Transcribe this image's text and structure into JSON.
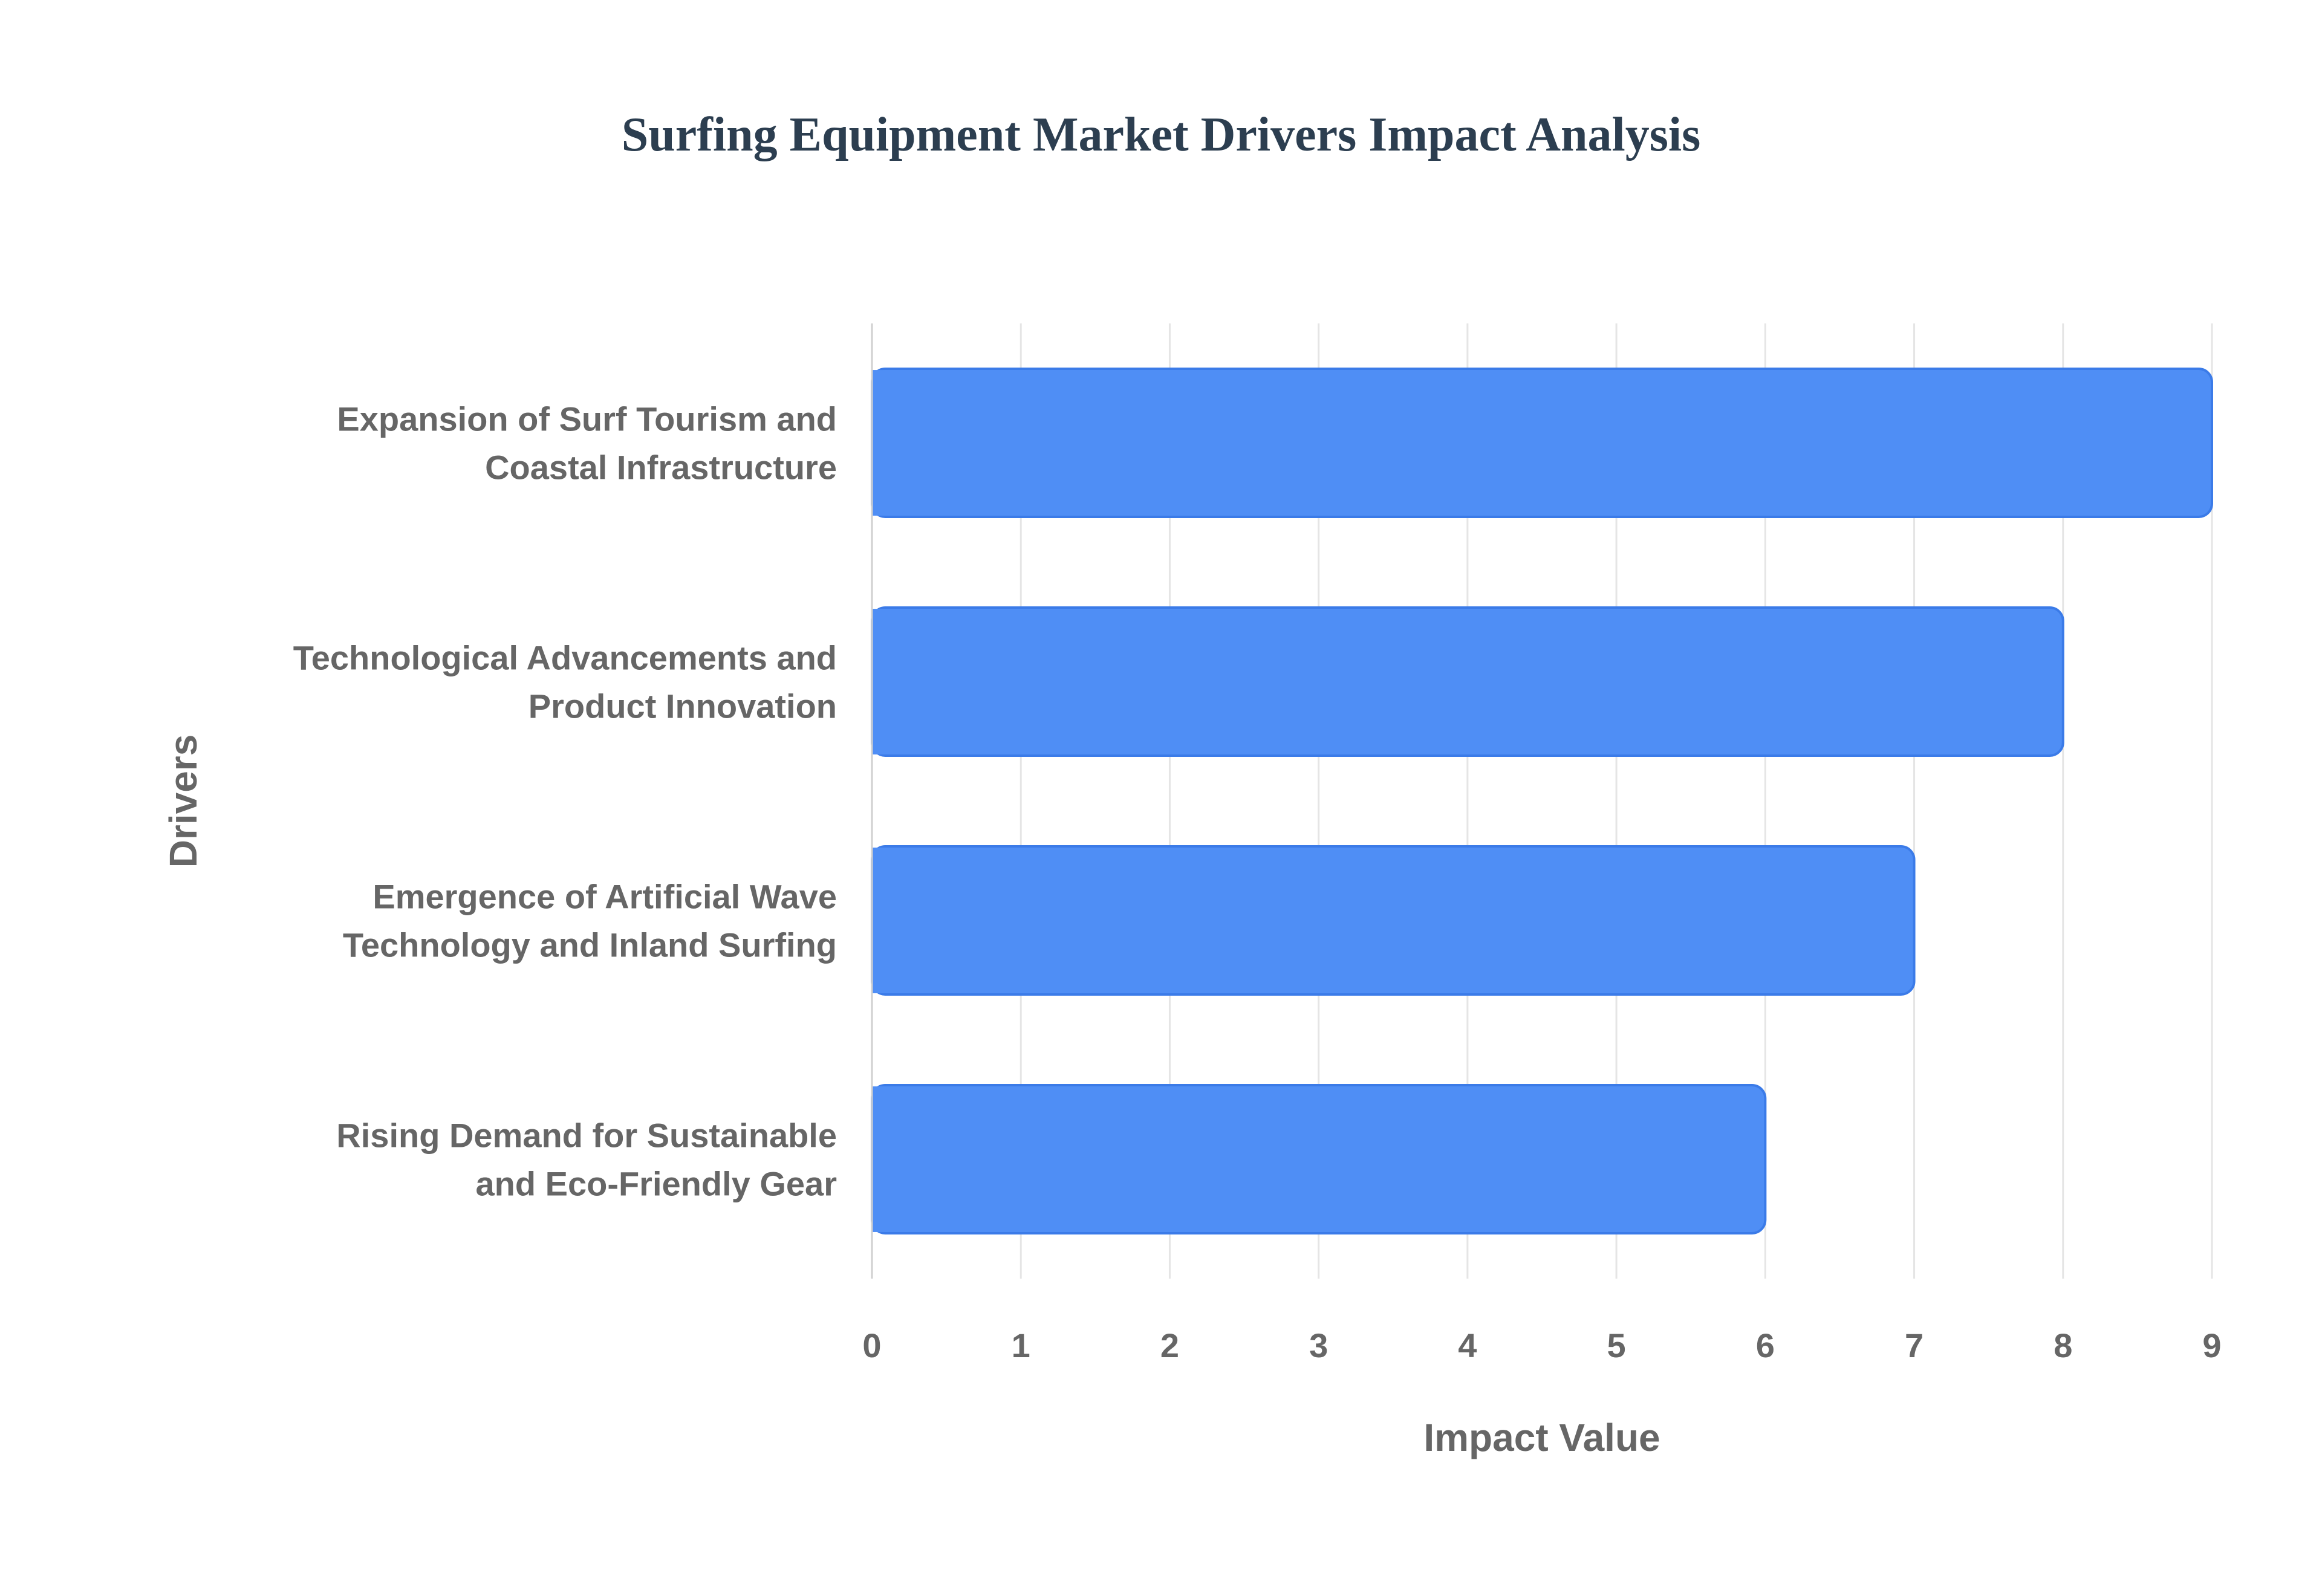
{
  "chart_data": {
    "type": "bar",
    "orientation": "horizontal",
    "title": "Surfing Equipment Market Drivers Impact Analysis",
    "xlabel": "Impact Value",
    "ylabel": "Drivers",
    "categories": [
      [
        "Expansion of Surf Tourism and",
        "Coastal Infrastructure"
      ],
      [
        "Technological Advancements and",
        "Product Innovation"
      ],
      [
        "Emergence of Artificial Wave",
        "Technology and Inland Surfing"
      ],
      [
        "Rising Demand for Sustainable",
        "and Eco-Friendly Gear"
      ]
    ],
    "values": [
      9,
      8,
      7,
      6
    ],
    "xlim": [
      0,
      9
    ],
    "xticks": [
      0,
      1,
      2,
      3,
      4,
      5,
      6,
      7,
      8,
      9
    ],
    "grid": true,
    "legend": "none",
    "colors": {
      "bar_fill": "#4f8ef5",
      "bar_border": "#3b7be8",
      "title": "#2c3e50",
      "text": "#666666",
      "grid": "#e5e5e5"
    }
  }
}
